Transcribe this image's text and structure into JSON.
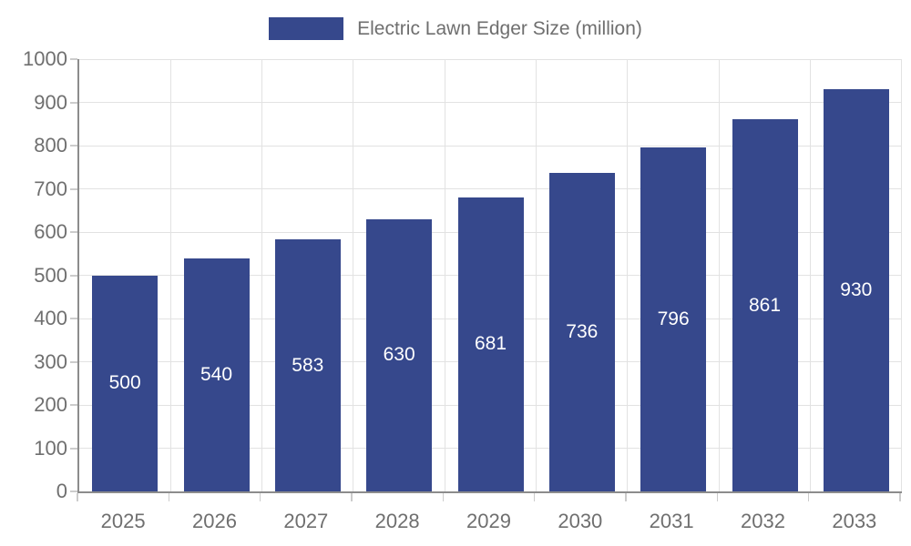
{
  "chart_data": {
    "type": "bar",
    "title": "Electric Lawn Edger Size (million)",
    "categories": [
      "2025",
      "2026",
      "2027",
      "2028",
      "2029",
      "2030",
      "2031",
      "2032",
      "2033"
    ],
    "series": [
      {
        "name": "Electric Lawn Edger Size (million)",
        "values": [
          500,
          540,
          583,
          630,
          681,
          736,
          796,
          861,
          930
        ]
      }
    ],
    "xlabel": "",
    "ylabel": "",
    "ylim": [
      0,
      1000
    ],
    "yticks": [
      0,
      100,
      200,
      300,
      400,
      500,
      600,
      700,
      800,
      900,
      1000
    ],
    "grid": true,
    "legend_position": "top-center",
    "value_label_position": "inside-center"
  },
  "colors": {
    "background": "#ffffff",
    "bar": "#36488c",
    "axis": "#8c8c8c",
    "grid": "#e2e2e2",
    "tick": "#cccccc",
    "text": "#6f6f6f",
    "legend_text": "#757575",
    "value_label": "#ffffff"
  }
}
